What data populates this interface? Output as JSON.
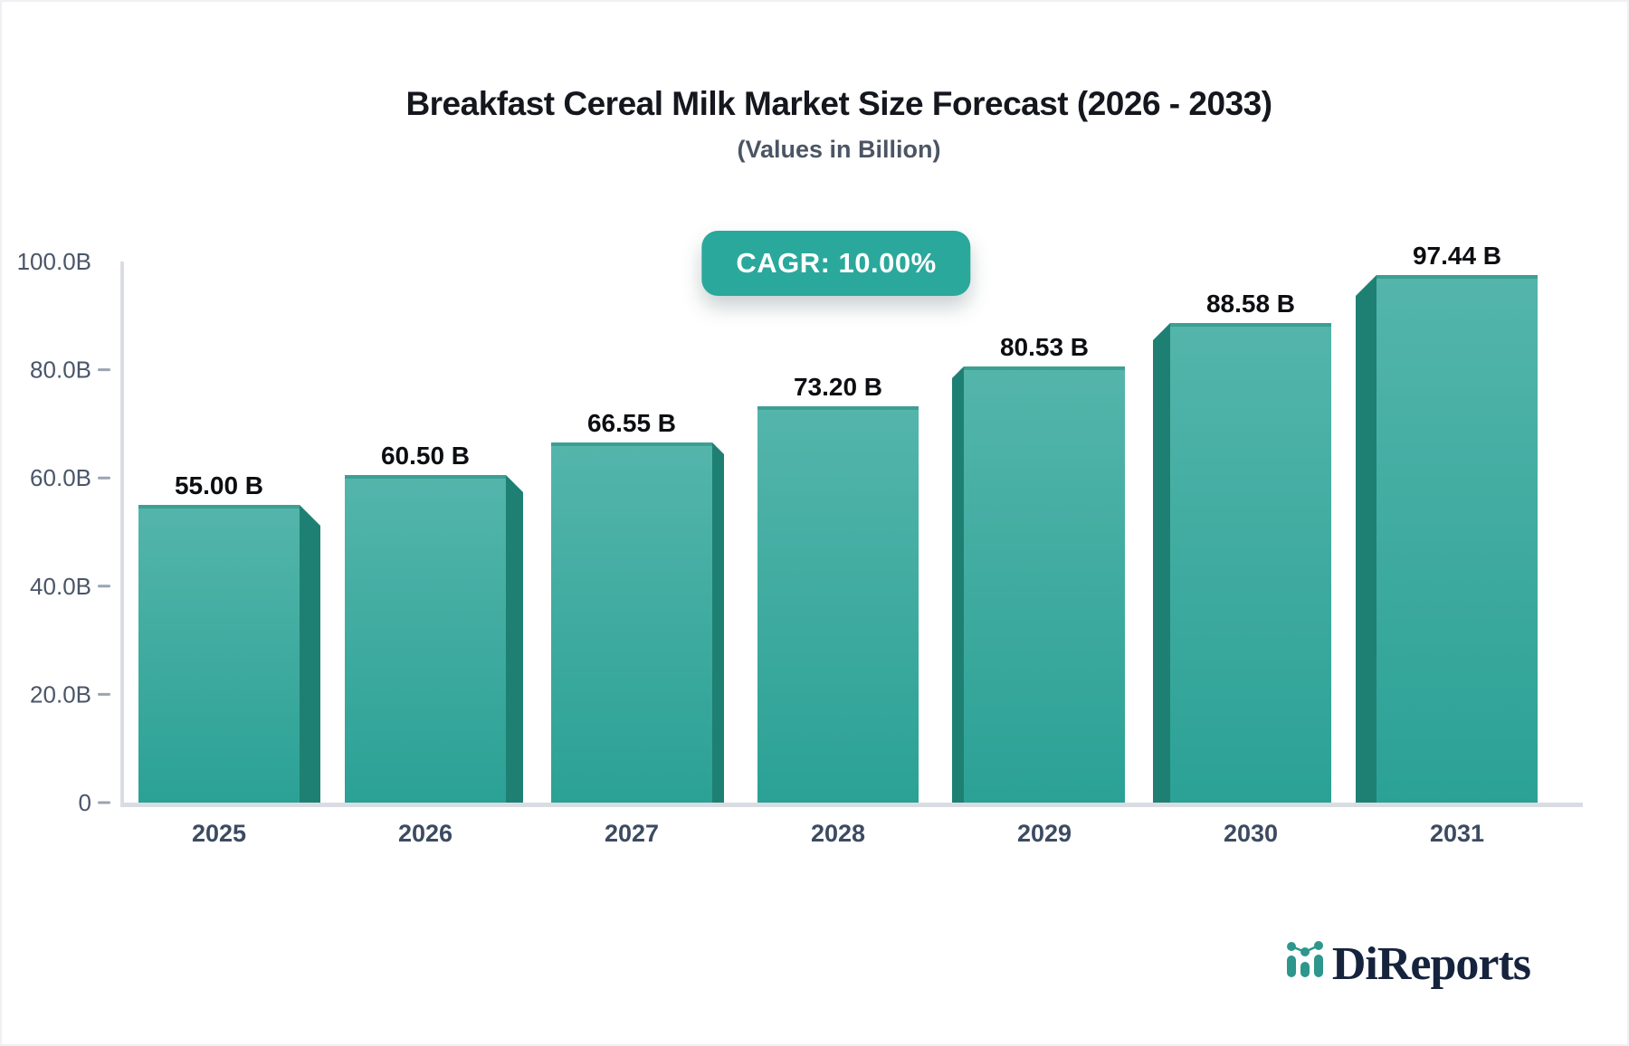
{
  "header": {
    "title": "Breakfast Cereal Milk Market Size Forecast (2026 - 2033)",
    "subtitle": "(Values in Billion)"
  },
  "badge": {
    "text": "CAGR: 10.00%",
    "bg_color": "#2aa89c",
    "text_color": "#ffffff"
  },
  "chart_data": {
    "type": "bar",
    "title": "Breakfast Cereal Milk Market Size Forecast (2026 - 2033)",
    "subtitle": "(Values in Billion)",
    "cagr": "10.00%",
    "unit": "Billion",
    "categories": [
      "2025",
      "2026",
      "2027",
      "2028",
      "2029",
      "2030",
      "2031"
    ],
    "values": [
      55.0,
      60.5,
      66.55,
      73.2,
      80.53,
      88.58,
      97.44
    ],
    "value_labels": [
      "55.00 B",
      "60.50 B",
      "66.55 B",
      "73.20 B",
      "80.53 B",
      "88.58 B",
      "97.44 B"
    ],
    "ylim": [
      0,
      100
    ],
    "yticks": [
      {
        "value": 100,
        "label": "100.0B"
      },
      {
        "value": 80,
        "label": "80.0B"
      },
      {
        "value": 60,
        "label": "60.0B"
      },
      {
        "value": 40,
        "label": "40.0B"
      },
      {
        "value": 20,
        "label": "20.0B"
      },
      {
        "value": 0,
        "label": "0"
      }
    ],
    "grid": false,
    "legend": false,
    "style": {
      "bar_face_top": "#54b5ab",
      "bar_face_bottom": "#2ba195",
      "bar_top_edge": "#3d9f94",
      "bar_side": "#1e8073",
      "axis_line": "#d9dde3",
      "tick_dash": "#9aa4b2",
      "ytick_label_color": "#4a5568",
      "xtick_label_color": "#3c4b61",
      "value_label_color": "#0c0e11"
    }
  },
  "branding": {
    "name": "DiReports",
    "text_color": "#16233d",
    "icon": "mini-bar-line-chart-icon",
    "icon_color": "#2d968d"
  }
}
